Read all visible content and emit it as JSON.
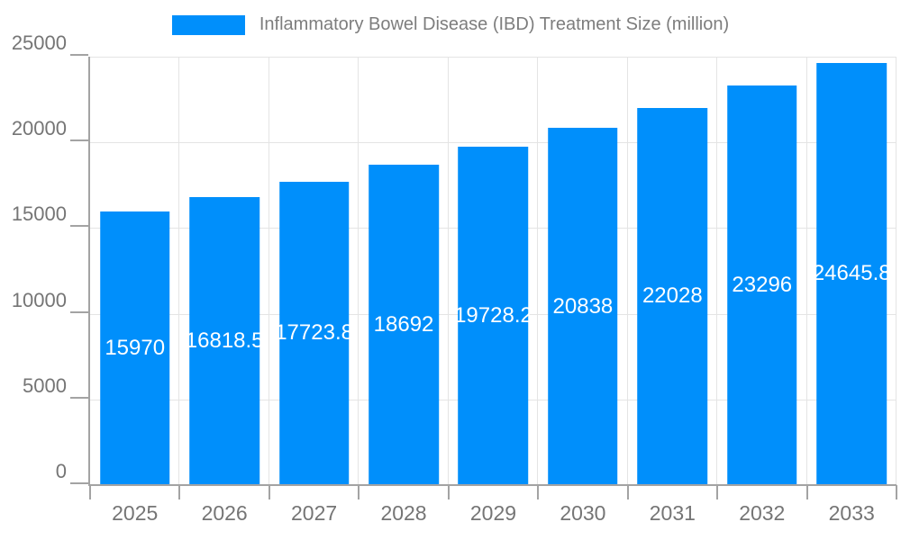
{
  "chart_data": {
    "type": "bar",
    "title": "Inflammatory Bowel Disease (IBD) Treatment Size (million)",
    "legend": {
      "position": "top",
      "label": "Inflammatory Bowel Disease (IBD) Treatment Size (million)"
    },
    "categories": [
      "2025",
      "2026",
      "2027",
      "2028",
      "2029",
      "2030",
      "2031",
      "2032",
      "2033"
    ],
    "series": [
      {
        "name": "Inflammatory Bowel Disease (IBD) Treatment Size (million)",
        "values": [
          15970,
          16818.5,
          17723.8,
          18692,
          19728.2,
          20838,
          22028,
          23296,
          24645.8
        ]
      }
    ],
    "bar_labels": [
      "15970",
      "16818.5",
      "17723.8",
      "18692",
      "19728.2",
      "20838",
      "22028",
      "23296",
      "24645.8"
    ],
    "xlabel": "",
    "ylabel": "",
    "ylim": [
      0,
      25000
    ],
    "yticks": [
      0,
      5000,
      10000,
      15000,
      20000,
      25000
    ],
    "grid": true,
    "colors": {
      "bar": "#008FFB",
      "bar_label_text": "#ffffff",
      "axis_text": "#757575",
      "legend_text": "#7d7d7d",
      "axis_line": "#a3a3a3",
      "gridline": "#e4e4e4",
      "background": "#ffffff"
    }
  }
}
